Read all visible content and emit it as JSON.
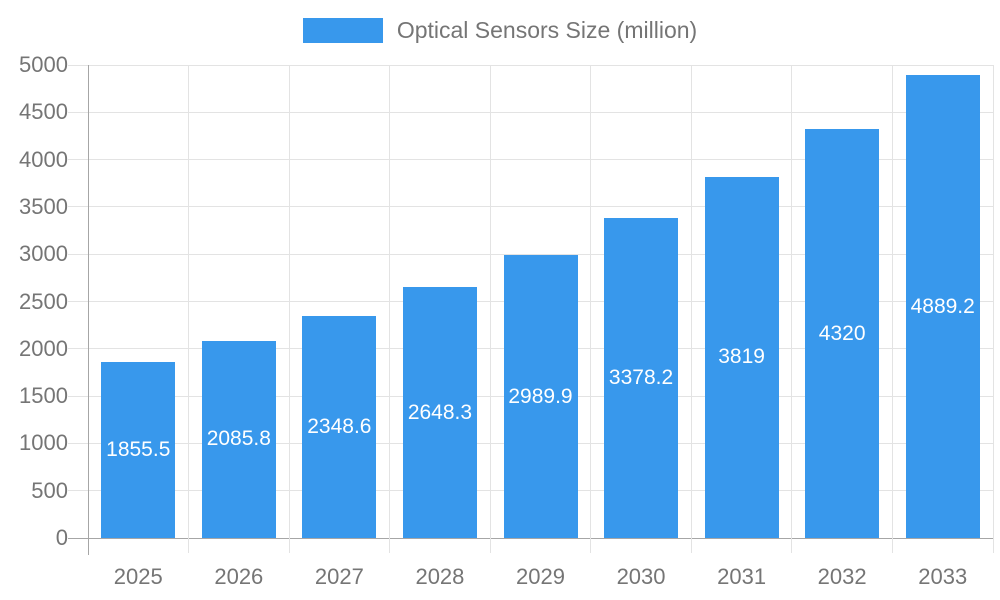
{
  "chart_data": {
    "type": "bar",
    "title": "Optical Sensors Size (million)",
    "categories": [
      "2025",
      "2026",
      "2027",
      "2028",
      "2029",
      "2030",
      "2031",
      "2032",
      "2033"
    ],
    "series": [
      {
        "name": "Optical Sensors Size (million)",
        "values": [
          1855.5,
          2085.8,
          2348.6,
          2648.3,
          2989.9,
          3378.2,
          3819,
          4320,
          4889.2
        ]
      }
    ],
    "xlabel": "",
    "ylabel": "",
    "ylim": [
      0,
      5000
    ],
    "ytick_step": 500,
    "grid": "both",
    "legend_position": "top-center",
    "value_labels": "inside-center"
  },
  "colors": {
    "bar": "#3898EC",
    "gridline": "#E3E3E3",
    "axis_line": "#A6A6A6",
    "tick_text": "#757575",
    "legend_text": "#757575",
    "value_label_text": "#FFFFFF",
    "background": "#FFFFFF"
  }
}
